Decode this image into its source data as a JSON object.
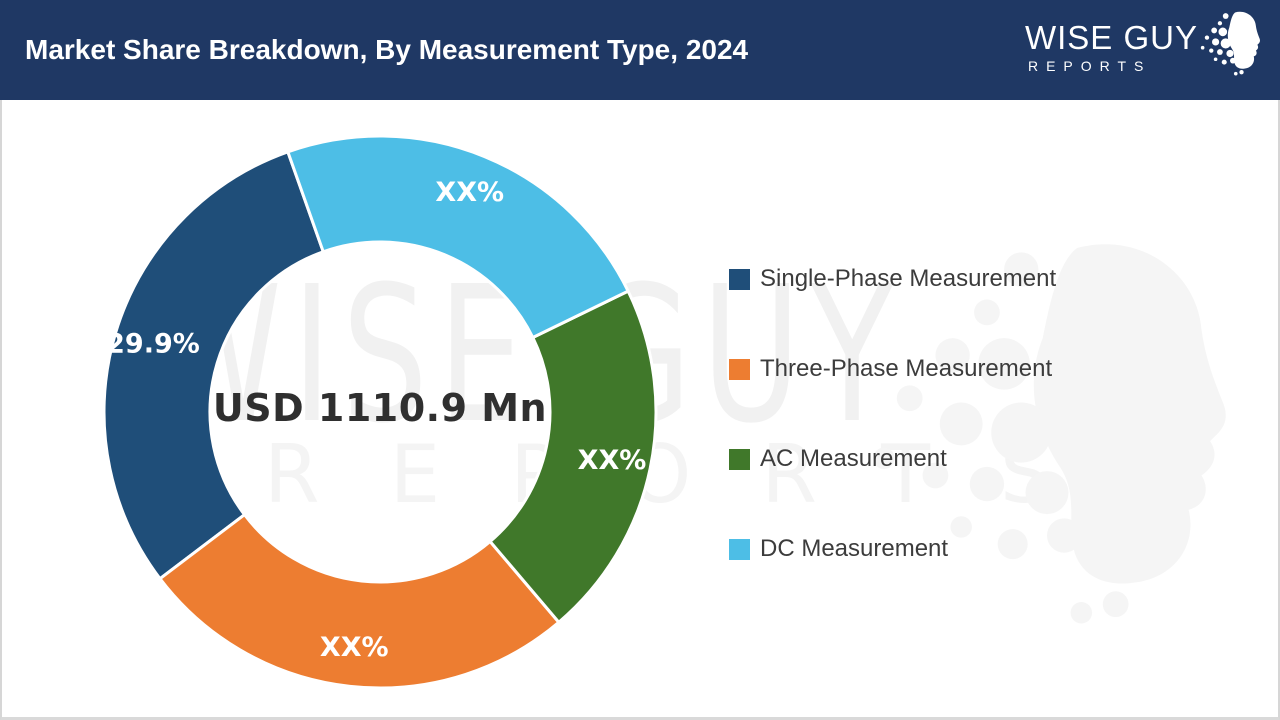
{
  "header": {
    "title": "Market Share Breakdown, By Measurement Type, 2024",
    "logo": {
      "line1": "WISE GUY",
      "line2": "REPORTS"
    }
  },
  "watermark": {
    "line1": "WISE GUY",
    "line2": "REPORTS"
  },
  "chart_data": {
    "type": "pie",
    "subtype": "donut",
    "title": "Market Share Breakdown, By Measurement Type, 2024",
    "center_label": "USD 1110.9 Mn",
    "start_angle_deg": 109.5,
    "direction": "counterclockwise",
    "inner_radius_ratio": 0.615,
    "legend_position": "right",
    "slices": [
      {
        "label": "Single-Phase Measurement",
        "value": 29.9,
        "display_pct": "29.9%",
        "color": "#1F4E79"
      },
      {
        "label": "Three-Phase Measurement",
        "value": 25.9,
        "display_pct": "XX%",
        "color": "#ED7D31"
      },
      {
        "label": "AC Measurement",
        "value": 21.0,
        "display_pct": "XX%",
        "color": "#40782A"
      },
      {
        "label": "DC Measurement",
        "value": 23.2,
        "display_pct": "XX%",
        "color": "#4DBEE6"
      }
    ]
  }
}
